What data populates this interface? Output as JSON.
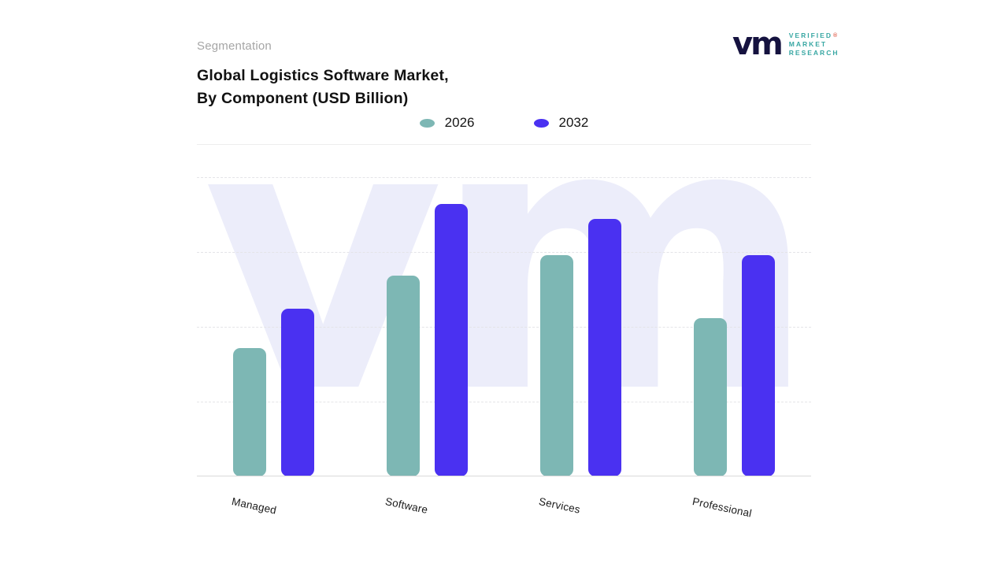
{
  "header": {
    "eyebrow": "Segmentation",
    "title_line1": "Global Logistics Software Market,",
    "title_line2": "By Component (USD Billion)"
  },
  "logo": {
    "mark": "vm",
    "registered_symbol": "®",
    "lines": [
      "VERIFIED",
      "MARKET",
      "RESEARCH"
    ]
  },
  "watermark": {
    "text": "vm"
  },
  "legend": {
    "items": [
      {
        "label": "2026",
        "color": "#7db7b4"
      },
      {
        "label": "2032",
        "color": "#4a31f1"
      }
    ]
  },
  "chart_data": {
    "type": "bar",
    "title": "Global Logistics Software Market, By Component (USD Billion)",
    "categories": [
      "Managed",
      "Software",
      "Services",
      "Professional"
    ],
    "series": [
      {
        "name": "2026",
        "color": "#7db7b4",
        "values": [
          43,
          67,
          74,
          53
        ]
      },
      {
        "name": "2032",
        "color": "#4a31f1",
        "values": [
          56,
          91,
          86,
          74
        ]
      }
    ],
    "xlabel": "",
    "ylabel": "",
    "ylim": [
      0,
      100
    ],
    "values_note": "y-axis has no tick labels in source; values are relative heights estimated as % of plot span",
    "grid": "horizontal-dashed",
    "legend_position": "top-center"
  },
  "colors": {
    "teal": "#7db7b4",
    "purple": "#4a31f1",
    "watermark": "#ecedfa",
    "muted_text": "#a5a5a5",
    "title_text": "#121212",
    "gridline": "#e4e4e8",
    "logo_mark": "#15123f",
    "logo_text": "#38a7a3"
  }
}
